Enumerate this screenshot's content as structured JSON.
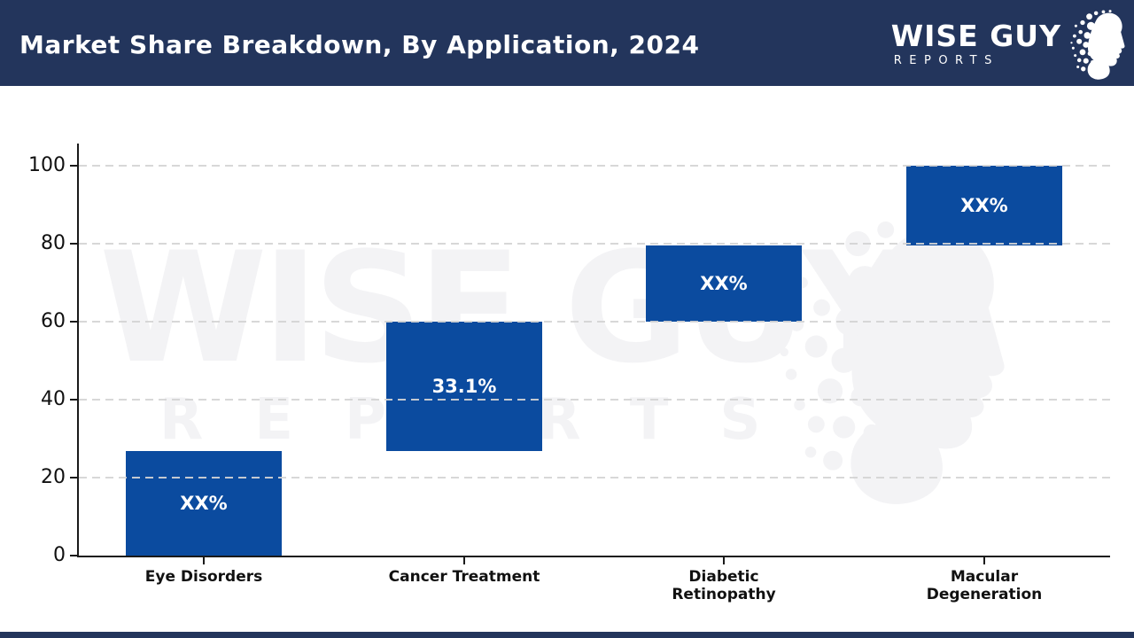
{
  "header": {
    "title": "Market Share Breakdown, By Application, 2024",
    "logo": {
      "line1": "WISE GUY",
      "line2": "REPORTS"
    }
  },
  "watermark": {
    "line1": "WISE GUY",
    "line2": "REPORTS"
  },
  "colors": {
    "header_bg": "#23355c",
    "bar": "#0b4b9f",
    "grid": "#d4d4d4",
    "axis": "#1a1a1a",
    "watermark": "#f3f3f5",
    "bar_label": "#ffffff"
  },
  "chart_data": {
    "type": "bar",
    "subtype": "waterfall-floating-bars",
    "title": "Market Share Breakdown, By Application, 2024",
    "categories": [
      "Eye Disorders",
      "Cancer Treatment",
      "Diabetic Retinopathy",
      "Macular Degeneration"
    ],
    "segments": [
      {
        "name": "Eye Disorders",
        "name_lines": [
          "Eye Disorders"
        ],
        "start": 0,
        "end": 26.9,
        "value": "XX%"
      },
      {
        "name": "Cancer Treatment",
        "name_lines": [
          "Cancer Treatment"
        ],
        "start": 26.9,
        "end": 60,
        "value": "33.1%"
      },
      {
        "name": "Diabetic Retinopathy",
        "name_lines": [
          "Diabetic",
          "Retinopathy"
        ],
        "start": 60,
        "end": 79.6,
        "value": "XX%"
      },
      {
        "name": "Macular Degeneration",
        "name_lines": [
          "Macular",
          "Degeneration"
        ],
        "start": 79.6,
        "end": 100,
        "value": "XX%"
      }
    ],
    "yticks": [
      0,
      20,
      40,
      60,
      80,
      100
    ],
    "ylim": [
      0,
      100
    ],
    "xlabel": "",
    "ylabel": "",
    "grid": "horizontal-dashed",
    "legend": "none"
  }
}
